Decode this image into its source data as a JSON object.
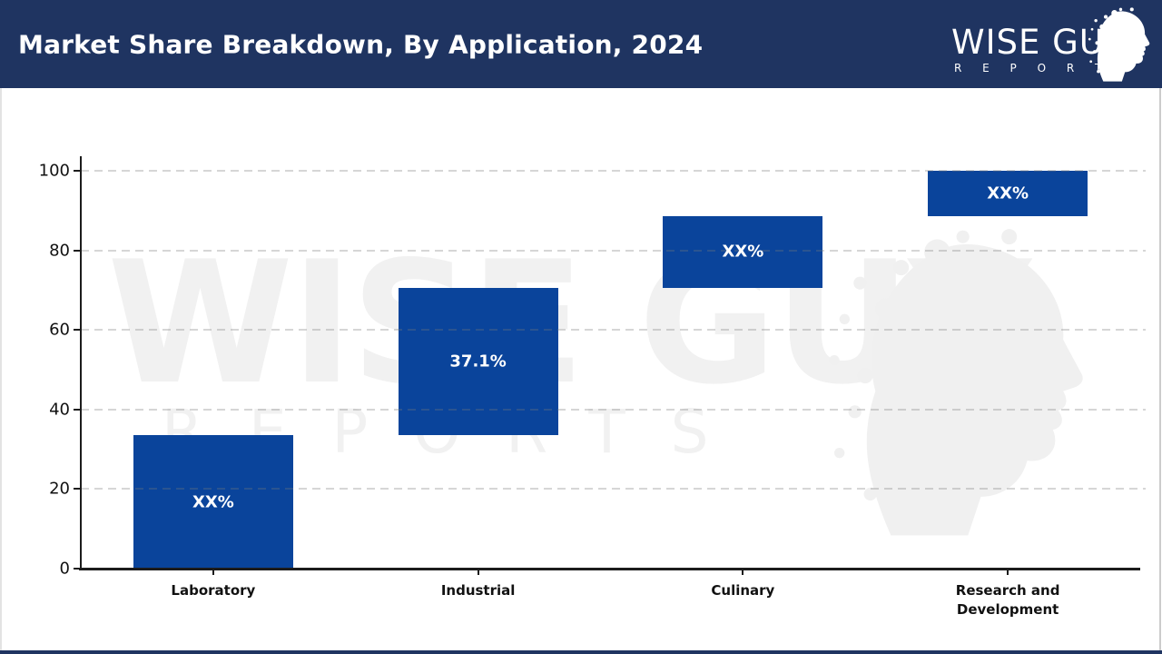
{
  "header": {
    "title": "Market Share Breakdown, By Application, 2024",
    "logo": {
      "line1": "WISE GUY",
      "line2": "REPORTS"
    }
  },
  "watermark": {
    "line1": "WISE GUY",
    "line2": "REPORTS"
  },
  "colors": {
    "header_bg": "#1f3461",
    "bar": "#0a449b",
    "bar_label": "#ffffff",
    "axis": "#1c1c1c",
    "grid": "#d9d9d9",
    "watermark": "#f1f1f1"
  },
  "chart_data": {
    "type": "bar",
    "subtype": "waterfall",
    "title": "Market Share Breakdown, By Application, 2024",
    "xlabel": "",
    "ylabel": "",
    "ylim": [
      0,
      100
    ],
    "yticks": [
      0,
      20,
      40,
      60,
      80,
      100
    ],
    "grid": "dashed-horizontal",
    "legend": "none",
    "categories": [
      "Laboratory",
      "Industrial",
      "Culinary",
      "Research and Development"
    ],
    "segments": [
      {
        "category": "Laboratory",
        "start": 0,
        "end": 33.5,
        "value": 33.5,
        "label": "XX%"
      },
      {
        "category": "Industrial",
        "start": 33.5,
        "end": 70.6,
        "value": 37.1,
        "label": "37.1%"
      },
      {
        "category": "Culinary",
        "start": 70.6,
        "end": 88.6,
        "value": 18.0,
        "label": "XX%"
      },
      {
        "category": "Research and Development",
        "start": 88.6,
        "end": 100,
        "value": 11.4,
        "label": "XX%"
      }
    ]
  }
}
